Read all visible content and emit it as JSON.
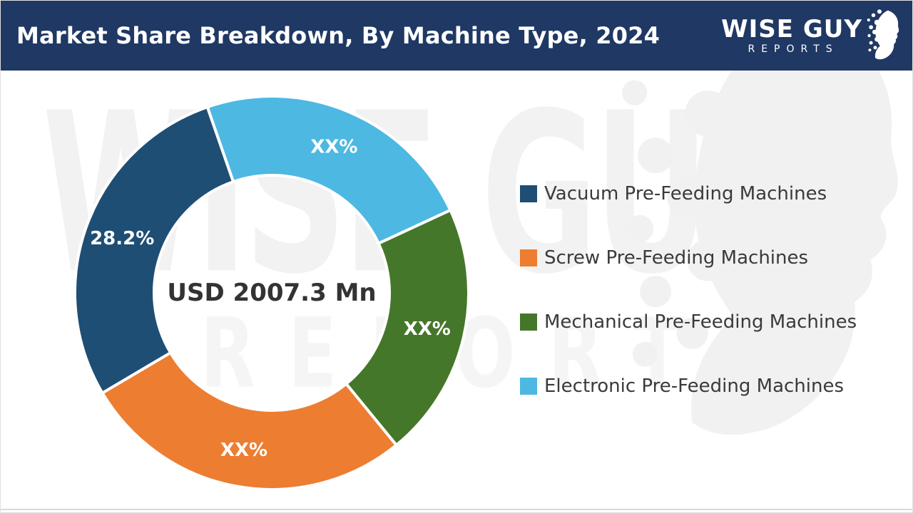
{
  "header": {
    "title": "Market Share Breakdown, By Machine Type, 2024",
    "logo": {
      "line1": "WISE GUY",
      "line2": "REPORTS"
    }
  },
  "watermark": {
    "line1": "WISE GUY",
    "line2": "REPORTS"
  },
  "colors": {
    "header_bg": "#1F3864",
    "title_text": "#FFFFFF",
    "center_text": "#333333",
    "legend_text": "#3A3A3A",
    "segment_divider": "#FFFFFF",
    "watermark": "#F2F2F2",
    "border": "#D9D9D9"
  },
  "chart_data": {
    "type": "pie",
    "subtype": "donut",
    "title": "Market Share Breakdown, By Machine Type, 2024",
    "center_label": "USD 2007.3 Mn",
    "legend_position": "right",
    "start_angle_deg": -19.1,
    "segments": [
      {
        "name": "Electronic Pre-Feeding Machines",
        "value": 23.4,
        "display_label": "XX%",
        "color": "#4DB8E2"
      },
      {
        "name": "Mechanical Pre-Feeding Machines",
        "value": 21.0,
        "display_label": "XX%",
        "color": "#45772A"
      },
      {
        "name": "Screw Pre-Feeding Machines",
        "value": 27.4,
        "display_label": "XX%",
        "color": "#ED7D31"
      },
      {
        "name": "Vacuum Pre-Feeding Machines",
        "value": 28.2,
        "display_label": "28.2%",
        "color": "#1F4E74"
      }
    ],
    "legend_order": [
      "Vacuum Pre-Feeding Machines",
      "Screw Pre-Feeding Machines",
      "Mechanical Pre-Feeding Machines",
      "Electronic Pre-Feeding Machines"
    ]
  }
}
